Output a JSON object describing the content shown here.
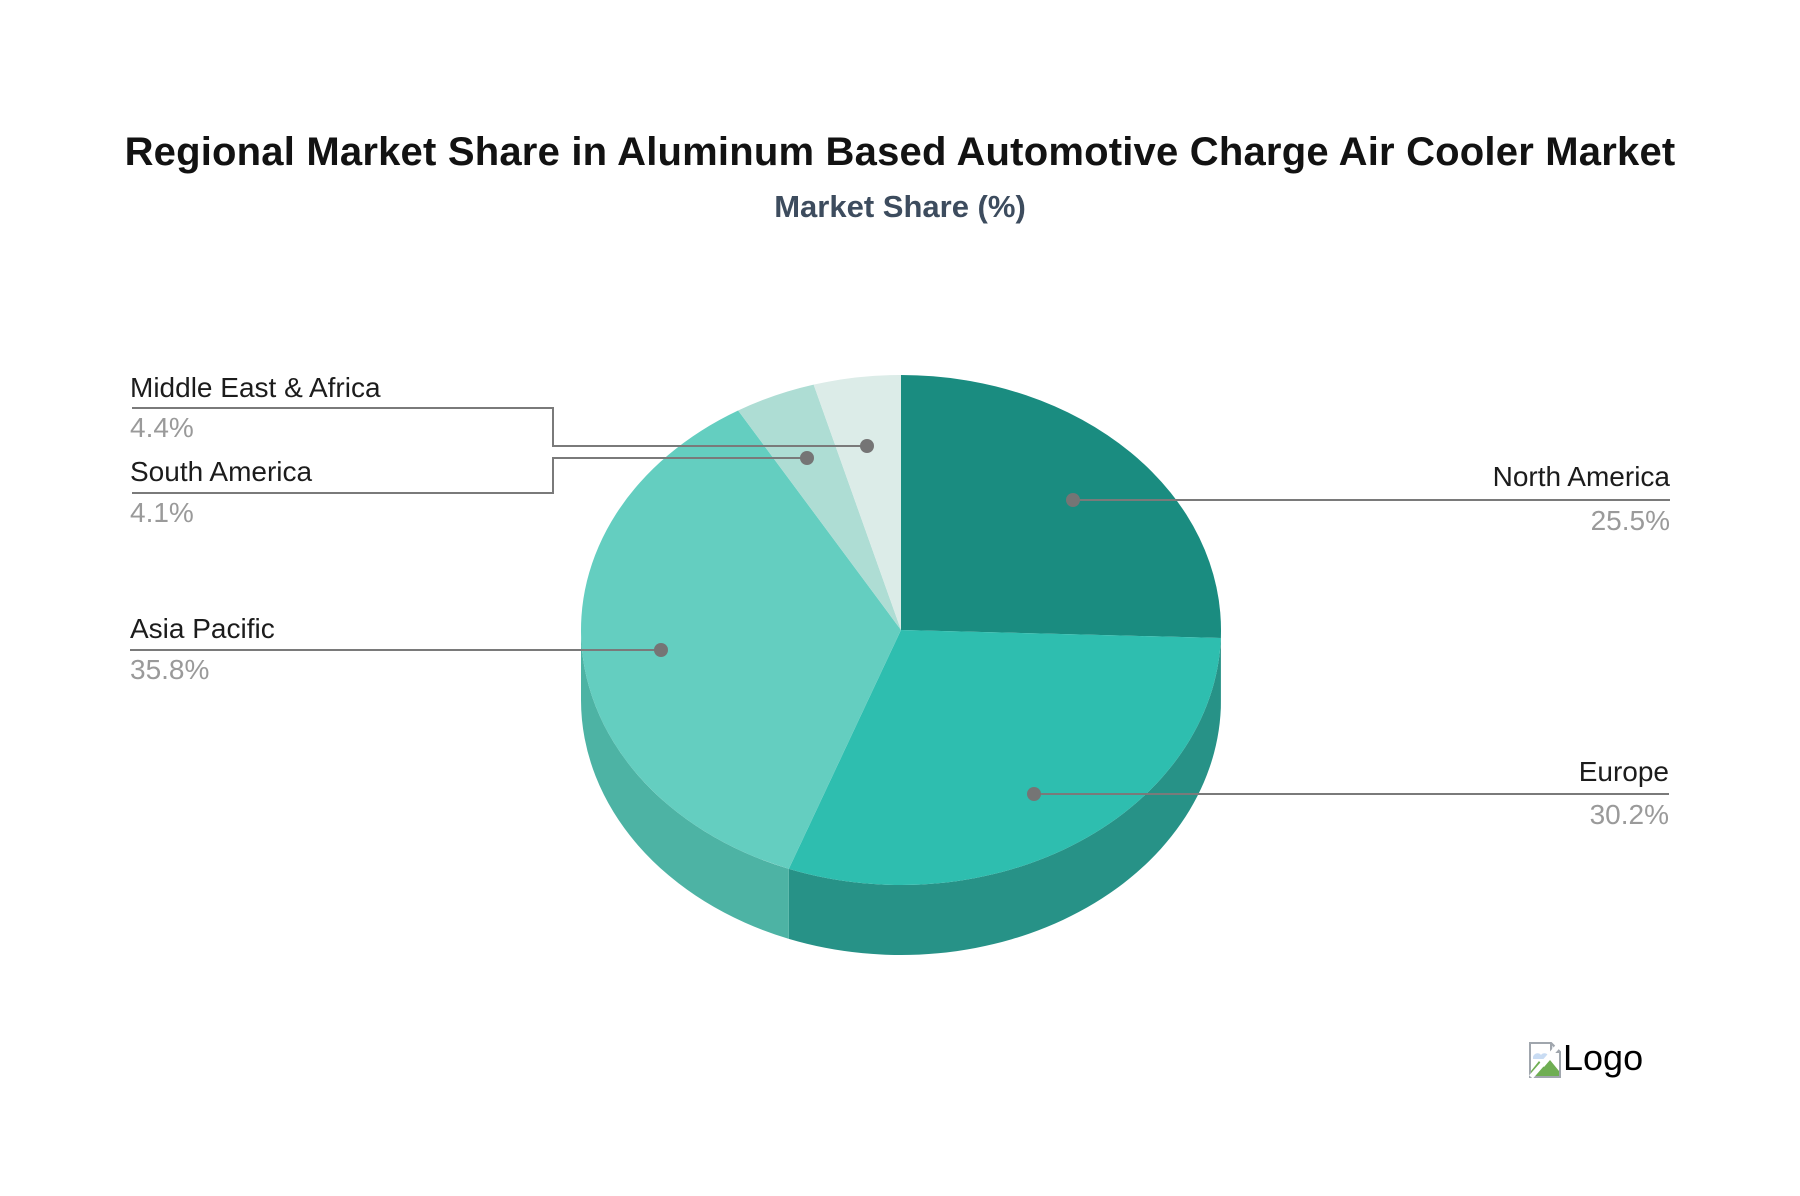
{
  "header": {
    "title": "Regional Market Share in Aluminum Based Automotive Charge Air Cooler Market",
    "subtitle": "Market Share (%)"
  },
  "chart_data": {
    "type": "pie",
    "title": "Regional Market Share in Aluminum Based Automotive Charge Air Cooler Market",
    "subtitle": "Market Share (%)",
    "unit": "%",
    "direction": "clockwise",
    "start_angle_deg": 0,
    "effect_3d": true,
    "legend_position": "none",
    "background": "#ffffff",
    "leader_line_color": "#7a7a7a",
    "leader_dot_color": "#757575",
    "label_text_color": "#1c1c1c",
    "pct_text_color": "#9a9a9a",
    "points": [
      {
        "label": "North America",
        "value": 25.5,
        "pct_text": "25.5%",
        "color": "#1a8c80",
        "side_color": "#15756c"
      },
      {
        "label": "Europe",
        "value": 30.2,
        "pct_text": "30.2%",
        "color": "#2ebeaf",
        "side_color": "#279287"
      },
      {
        "label": "Asia Pacific",
        "value": 35.8,
        "pct_text": "35.8%",
        "color": "#64cec0",
        "side_color": "#4db3a4"
      },
      {
        "label": "South America",
        "value": 4.1,
        "pct_text": "4.1%",
        "color": "#aeddd4",
        "side_color": "#8fc6bc"
      },
      {
        "label": "Middle East & Africa",
        "value": 4.4,
        "pct_text": "4.4%",
        "color": "#dcece8",
        "side_color": "#bcd9d3"
      }
    ]
  },
  "logo": {
    "alt_text": "Logo"
  }
}
